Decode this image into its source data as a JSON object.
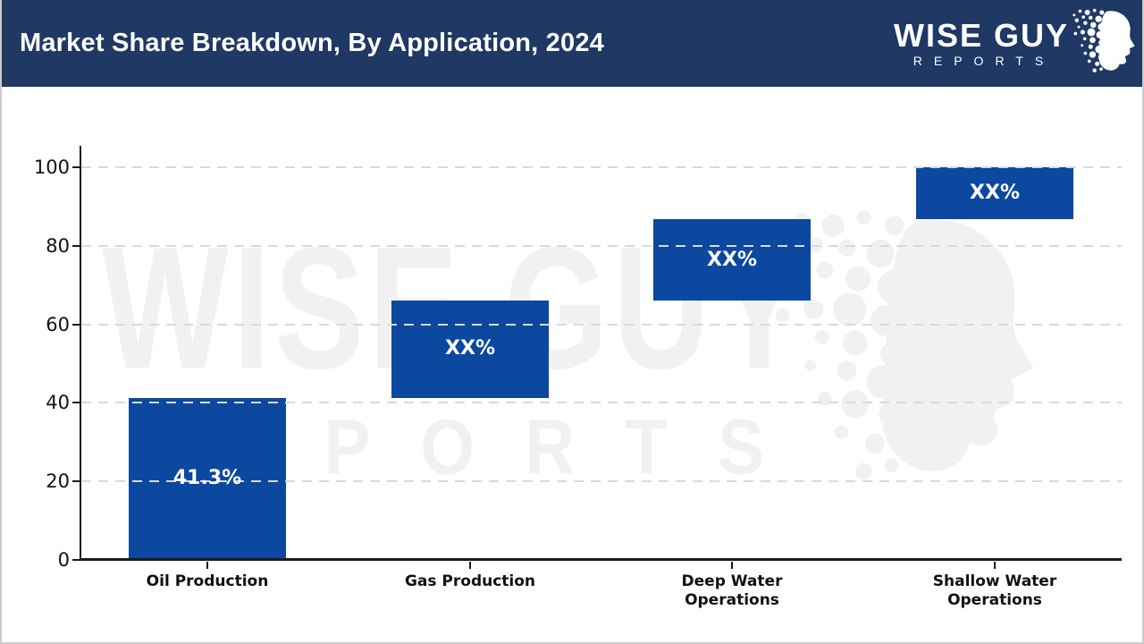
{
  "header": {
    "title": "Market Share Breakdown, By Application, 2024",
    "logo": {
      "line1": "WISE GUY",
      "line2": "REPORTS"
    }
  },
  "watermark": {
    "line1": "WISE GUY",
    "line2": "REPORTS"
  },
  "chart_data": {
    "type": "bar",
    "variant": "waterfall",
    "title": "Market Share Breakdown, By Application, 2024",
    "categories": [
      "Oil Production",
      "Gas Production",
      "Deep Water Operations",
      "Shallow Water Operations"
    ],
    "values": [
      41.3,
      24.7,
      20.8,
      13.2
    ],
    "segments": [
      {
        "start": 0,
        "end": 41.3,
        "label": "41.3%"
      },
      {
        "start": 41.3,
        "end": 66.0,
        "label": "XX%"
      },
      {
        "start": 66.0,
        "end": 86.8,
        "label": "XX%"
      },
      {
        "start": 86.8,
        "end": 100.0,
        "label": "XX%"
      }
    ],
    "xlabel": "",
    "ylabel": "",
    "ylim": [
      0,
      100
    ],
    "yticks": [
      0,
      20,
      40,
      60,
      80,
      100
    ],
    "grid": "horizontal-dashed",
    "legend": "none",
    "bar_color": "#0c47a0",
    "bar_label_color": "#ffffff"
  },
  "colors": {
    "header_bg": "#1f3864",
    "header_text": "#ffffff",
    "bar": "#0c47a0",
    "grid": "#d9d9d9",
    "axis": "#1a1a1a",
    "tick_text": "#111111",
    "watermark": "#f1f1f2",
    "page_border": "#cccccc"
  }
}
